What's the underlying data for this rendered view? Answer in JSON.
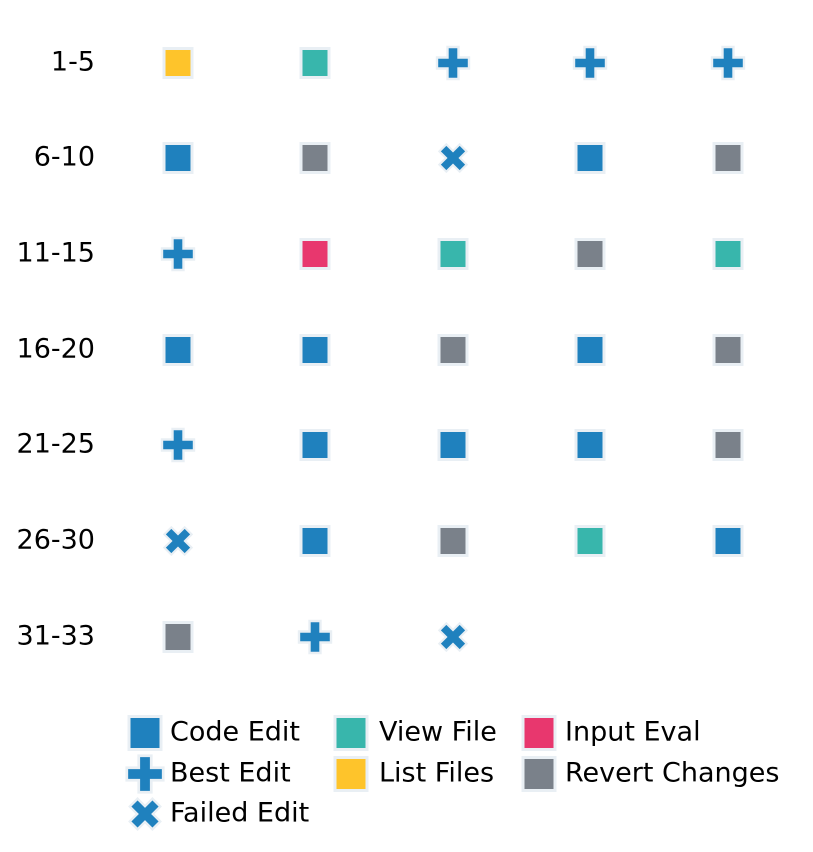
{
  "chart_data": {
    "type": "scatter",
    "description": "Categorical marker grid: each cell is one step's action type. Rows are step ranges (5 steps per row), columns are positions 1-5 within the range. Last row covers steps 31-33 (3 cells).",
    "title": "",
    "xlabel": "",
    "ylabel": "",
    "grid": false,
    "rows": [
      "1-5",
      "6-10",
      "11-15",
      "16-20",
      "21-25",
      "26-30",
      "31-33"
    ],
    "columns_per_row": [
      5,
      5,
      5,
      5,
      5,
      5,
      3
    ],
    "cells": [
      [
        "list_files",
        "view_file",
        "best_edit",
        "best_edit",
        "best_edit"
      ],
      [
        "code_edit",
        "revert_changes",
        "failed_edit",
        "code_edit",
        "revert_changes"
      ],
      [
        "best_edit",
        "input_eval",
        "view_file",
        "revert_changes",
        "view_file"
      ],
      [
        "code_edit",
        "code_edit",
        "revert_changes",
        "code_edit",
        "revert_changes"
      ],
      [
        "best_edit",
        "code_edit",
        "code_edit",
        "code_edit",
        "revert_changes"
      ],
      [
        "failed_edit",
        "code_edit",
        "revert_changes",
        "view_file",
        "code_edit"
      ],
      [
        "revert_changes",
        "best_edit",
        "failed_edit",
        null,
        null
      ]
    ],
    "categories": [
      {
        "id": "code_edit",
        "label": "Code Edit",
        "marker": "square",
        "color": "#1f81be"
      },
      {
        "id": "best_edit",
        "label": "Best Edit",
        "marker": "plus",
        "color": "#1f81be"
      },
      {
        "id": "failed_edit",
        "label": "Failed Edit",
        "marker": "x",
        "color": "#1f81be"
      },
      {
        "id": "view_file",
        "label": "View File",
        "marker": "square",
        "color": "#38b6ac"
      },
      {
        "id": "list_files",
        "label": "List Files",
        "marker": "square",
        "color": "#fec42b"
      },
      {
        "id": "input_eval",
        "label": "Input Eval",
        "marker": "square",
        "color": "#e8376e"
      },
      {
        "id": "revert_changes",
        "label": "Revert Changes",
        "marker": "square",
        "color": "#7a818a"
      }
    ],
    "marker_edge_color": "#e9eff4",
    "text_color": "#000000",
    "background_color": "#ffffff",
    "legend": {
      "position": "bottom",
      "arrangement": "3 columns, column-major",
      "columns": [
        [
          "code_edit",
          "best_edit",
          "failed_edit"
        ],
        [
          "view_file",
          "list_files"
        ],
        [
          "input_eval",
          "revert_changes"
        ]
      ]
    }
  }
}
